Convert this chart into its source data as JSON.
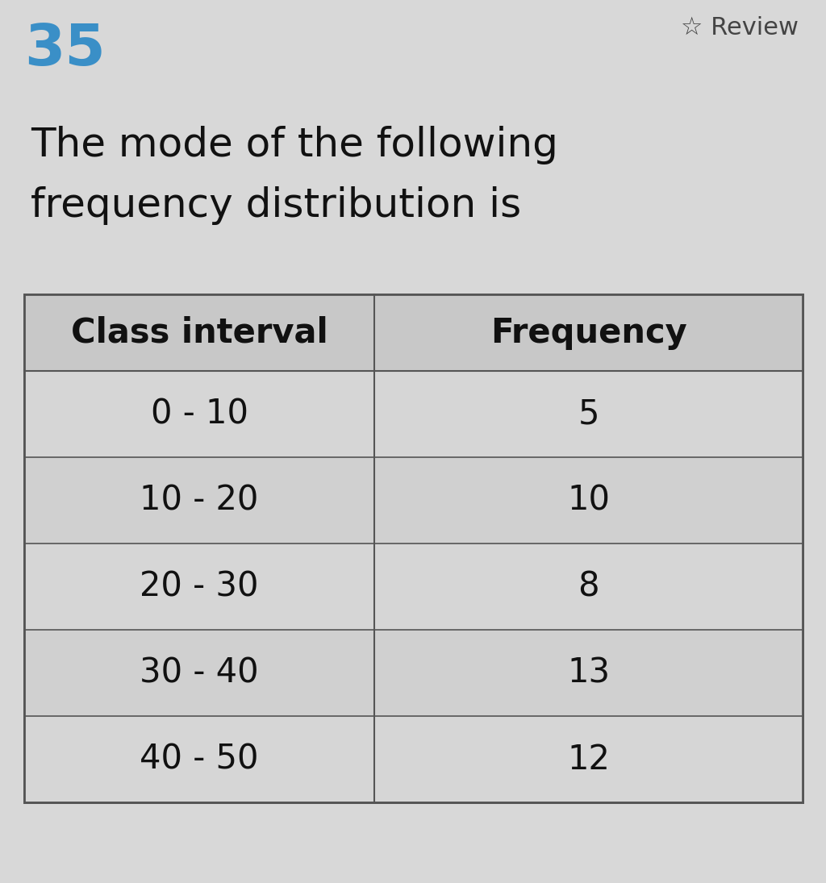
{
  "title_line1": "The mode of the following",
  "title_line2": "frequency distribution is",
  "header_col1": "Class interval",
  "header_col2": "Frequency",
  "rows": [
    [
      "0 - 10",
      "5"
    ],
    [
      "10 - 20",
      "10"
    ],
    [
      "20 - 30",
      "8"
    ],
    [
      "30 - 40",
      "13"
    ],
    [
      "40 - 50",
      "12"
    ]
  ],
  "top_left_text": "35",
  "top_right_text": "☆ Review",
  "bg_color": "#d8d8d8",
  "table_bg": "#d0d0d0",
  "header_bg": "#c8c8c8",
  "row_bg": "#d4d4d4",
  "border_color": "#555555",
  "text_color": "#111111",
  "title_color": "#111111",
  "accent_color": "#3a8fc7",
  "review_color": "#444444",
  "fig_width": 10.24,
  "fig_height": 10.95,
  "dpi": 100
}
